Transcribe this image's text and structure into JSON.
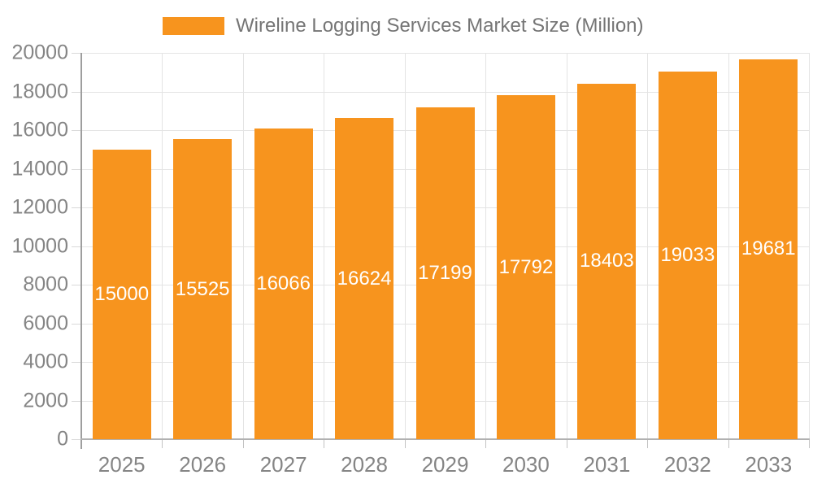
{
  "chart_data": {
    "type": "bar",
    "title": "Wireline Logging Services Market Size (Million)",
    "categories": [
      "2025",
      "2026",
      "2027",
      "2028",
      "2029",
      "2030",
      "2031",
      "2032",
      "2033"
    ],
    "values": [
      15000,
      15525,
      16066,
      16624,
      17199,
      17792,
      18403,
      19033,
      19681
    ],
    "xlabel": "",
    "ylabel": "",
    "ylim": [
      0,
      20000
    ],
    "ytick_interval": 2000,
    "ytick_labels": [
      "0",
      "2000",
      "4000",
      "6000",
      "8000",
      "10000",
      "12000",
      "14000",
      "16000",
      "18000",
      "20000"
    ],
    "grid": true,
    "legend_position": "top",
    "value_label_position": "middle-of-bar",
    "colors": {
      "bar": "#F7941E",
      "bar_value_text": "#FFFFFF",
      "axis_text": "#858585",
      "legend_text": "#757575",
      "gridline": "#E4E4E4",
      "axis_line": "#A8A8A8",
      "background": "#FFFFFF"
    }
  }
}
